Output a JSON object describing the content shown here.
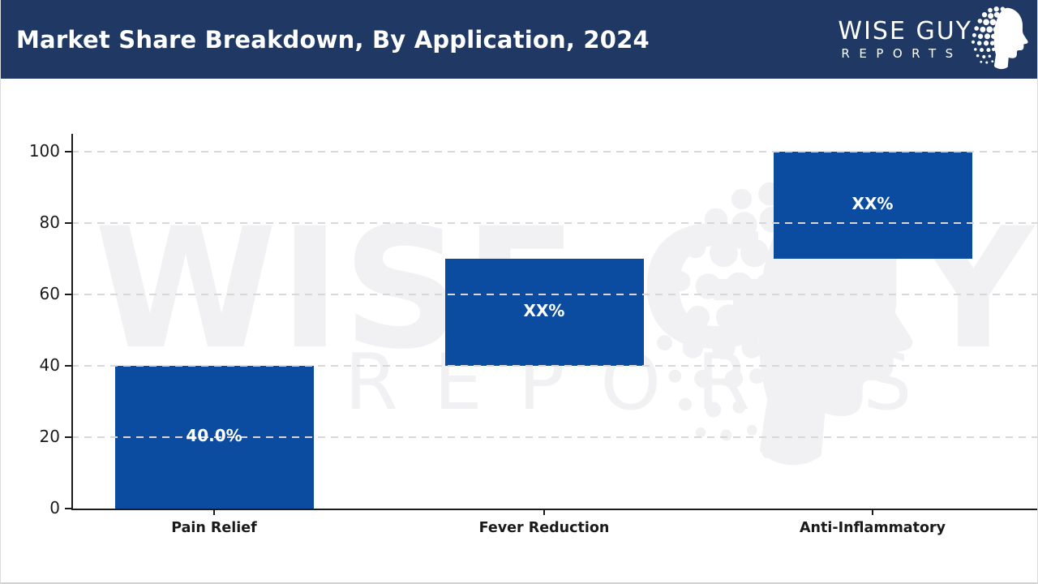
{
  "header": {
    "title": "Market Share Breakdown, By Application, 2024",
    "logo": {
      "line1": "WISE GUY",
      "line2": "REPORTS"
    }
  },
  "watermark": {
    "line1": "WISE GUY",
    "line2": "REPORTS"
  },
  "colors": {
    "header_bg": "#1F3864",
    "bar": "#0B4CA0",
    "bar_label": "#FFFFFF",
    "axis": "#1A1A1A",
    "grid": "#D8D8D8",
    "tick_label": "#1A1A1A",
    "watermark": "#F1F1F3"
  },
  "chart_data": {
    "type": "bar",
    "subtype": "floating-segment-bars",
    "title": "Market Share Breakdown, By Application, 2024",
    "categories": [
      "Pain Relief",
      "Fever Reduction",
      "Anti-Inflammatory"
    ],
    "bars": [
      {
        "category": "Pain Relief",
        "start": 0,
        "end": 40,
        "label": "40.0%"
      },
      {
        "category": "Fever Reduction",
        "start": 40,
        "end": 70,
        "label": "XX%"
      },
      {
        "category": "Anti-Inflammatory",
        "start": 70,
        "end": 100,
        "label": "XX%"
      }
    ],
    "yticks": [
      0,
      20,
      40,
      60,
      80,
      100
    ],
    "ylim": [
      0,
      105
    ],
    "xlabel": "",
    "ylabel": "",
    "grid": "horizontal-dashed",
    "legend": "none"
  }
}
